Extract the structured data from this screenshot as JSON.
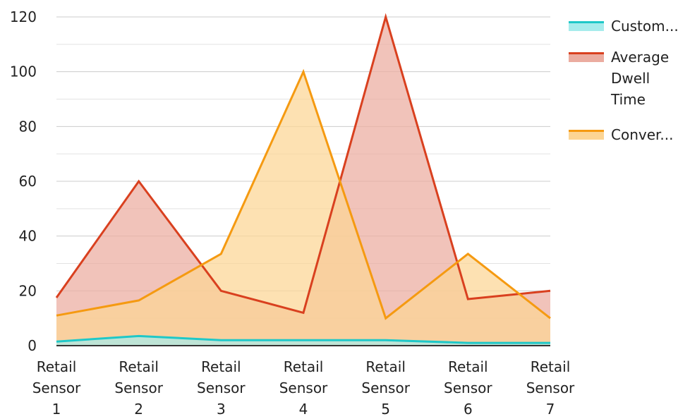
{
  "chart_data": {
    "type": "area",
    "categories": [
      [
        "Retail",
        "Sensor",
        "1"
      ],
      [
        "Retail",
        "Sensor",
        "2"
      ],
      [
        "Retail",
        "Sensor",
        "3"
      ],
      [
        "Retail",
        "Sensor",
        "4"
      ],
      [
        "Retail",
        "Sensor",
        "5"
      ],
      [
        "Retail",
        "Sensor",
        "6"
      ],
      [
        "Retail",
        "Sensor",
        "7"
      ]
    ],
    "y_ticks": [
      "0",
      "20",
      "40",
      "60",
      "80",
      "100",
      "120"
    ],
    "ylim": [
      0,
      120
    ],
    "grid": true,
    "legend_placement": "right",
    "series": [
      {
        "name": "Custom...",
        "values": [
          1.5,
          3.5,
          2,
          2,
          2,
          1,
          1
        ],
        "color": "#1fc8c8",
        "fill": "#a6ecec"
      },
      {
        "name": [
          "Average",
          "Dwell",
          "Time"
        ],
        "values": [
          17.5,
          60,
          20,
          12,
          120,
          17,
          20
        ],
        "color": "#d9401f",
        "fill": "#ebaca0"
      },
      {
        "name": "Conver...",
        "values": [
          11,
          16.5,
          33.5,
          100,
          10,
          33.5,
          10
        ],
        "color": "#f59a11",
        "fill": "#fcd594"
      }
    ]
  }
}
